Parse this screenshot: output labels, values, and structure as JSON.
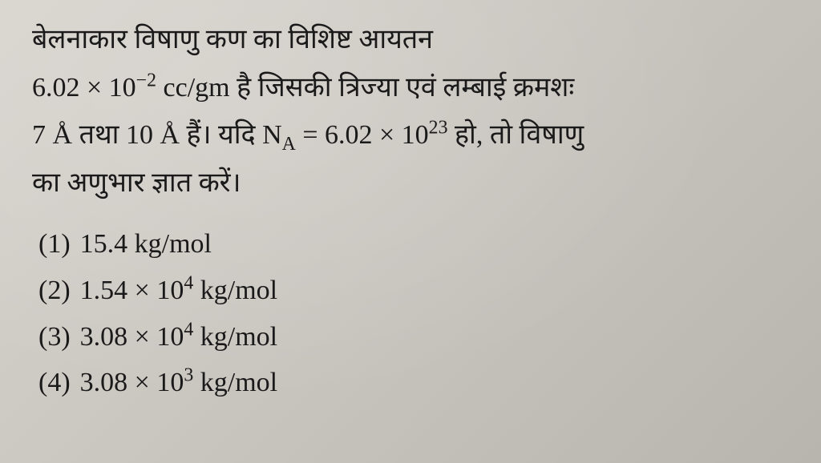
{
  "question": {
    "line1_part1": "बेलनाकार विषाणु कण का विशिष्ट आयतन",
    "specific_volume": "6.02 × 10",
    "specific_volume_exp": "−2",
    "specific_volume_unit": " cc/gm",
    "line2_part2": " है जिसकी त्रिज्या एवं लम्बाई क्रमशः",
    "radius": "7 Å",
    "and_word": " तथा ",
    "length": "10 Å",
    "line3_part2": " हैं। यदि N",
    "sub_A": "A",
    "equals": " = 6.02 × 10",
    "avogadro_exp": "23",
    "line3_part3": " हो, तो विषाणु",
    "line4": "का अणुभार ज्ञात करें।"
  },
  "options": [
    {
      "num": "(1)",
      "value": "15.4 kg/mol",
      "has_exp": false
    },
    {
      "num": "(2)",
      "prefix": "1.54 × 10",
      "exp": "4",
      "suffix": " kg/mol",
      "has_exp": true
    },
    {
      "num": "(3)",
      "prefix": "3.08 × 10",
      "exp": "4",
      "suffix": " kg/mol",
      "has_exp": true
    },
    {
      "num": "(4)",
      "prefix": "3.08 × 10",
      "exp": "3",
      "suffix": " kg/mol",
      "has_exp": true
    }
  ],
  "styling": {
    "background_gradient_start": "#d8d4ce",
    "background_gradient_end": "#b8b4ae",
    "text_color": "#1a1a1a",
    "question_fontsize": 34,
    "option_fontsize": 34,
    "line_height": 1.75,
    "font_family": "Georgia, Times New Roman, serif"
  }
}
